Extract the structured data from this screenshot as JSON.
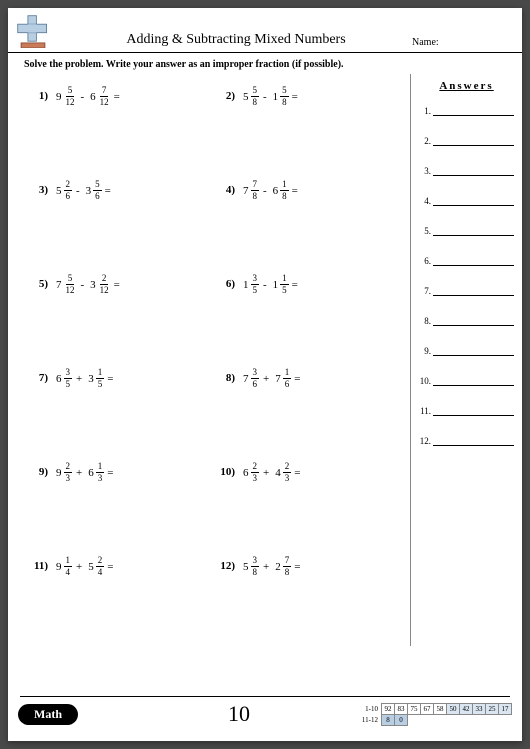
{
  "header": {
    "title": "Adding & Subtracting Mixed Numbers",
    "name_label": "Name:"
  },
  "instruction": "Solve the problem. Write your answer as an improper fraction (if possible).",
  "answers_title": "Answers",
  "page_number": "10",
  "math_label": "Math",
  "problems": [
    {
      "n": "1)",
      "a_w": "9",
      "a_n": "5",
      "a_d": "12",
      "op": "-",
      "b_w": "6",
      "b_n": "7",
      "b_d": "12"
    },
    {
      "n": "2)",
      "a_w": "5",
      "a_n": "5",
      "a_d": "8",
      "op": "-",
      "b_w": "1",
      "b_n": "5",
      "b_d": "8"
    },
    {
      "n": "3)",
      "a_w": "5",
      "a_n": "2",
      "a_d": "6",
      "op": "-",
      "b_w": "3",
      "b_n": "5",
      "b_d": "6"
    },
    {
      "n": "4)",
      "a_w": "7",
      "a_n": "7",
      "a_d": "8",
      "op": "-",
      "b_w": "6",
      "b_n": "1",
      "b_d": "8"
    },
    {
      "n": "5)",
      "a_w": "7",
      "a_n": "5",
      "a_d": "12",
      "op": "-",
      "b_w": "3",
      "b_n": "2",
      "b_d": "12"
    },
    {
      "n": "6)",
      "a_w": "1",
      "a_n": "3",
      "a_d": "5",
      "op": "-",
      "b_w": "1",
      "b_n": "1",
      "b_d": "5"
    },
    {
      "n": "7)",
      "a_w": "6",
      "a_n": "3",
      "a_d": "5",
      "op": "+",
      "b_w": "3",
      "b_n": "1",
      "b_d": "5"
    },
    {
      "n": "8)",
      "a_w": "7",
      "a_n": "3",
      "a_d": "6",
      "op": "+",
      "b_w": "7",
      "b_n": "1",
      "b_d": "6"
    },
    {
      "n": "9)",
      "a_w": "9",
      "a_n": "2",
      "a_d": "3",
      "op": "+",
      "b_w": "6",
      "b_n": "1",
      "b_d": "3"
    },
    {
      "n": "10)",
      "a_w": "6",
      "a_n": "2",
      "a_d": "3",
      "op": "+",
      "b_w": "4",
      "b_n": "2",
      "b_d": "3"
    },
    {
      "n": "11)",
      "a_w": "9",
      "a_n": "1",
      "a_d": "4",
      "op": "+",
      "b_w": "5",
      "b_n": "2",
      "b_d": "4"
    },
    {
      "n": "12)",
      "a_w": "5",
      "a_n": "3",
      "a_d": "8",
      "op": "+",
      "b_w": "2",
      "b_n": "7",
      "b_d": "8"
    }
  ],
  "answer_numbers": [
    "1.",
    "2.",
    "3.",
    "4.",
    "5.",
    "6.",
    "7.",
    "8.",
    "9.",
    "10.",
    "11.",
    "12."
  ],
  "score": {
    "row1_label": "1-10",
    "row2_label": "11-12",
    "row1": [
      "92",
      "83",
      "75",
      "67",
      "58",
      "50",
      "42",
      "33",
      "25",
      "17"
    ],
    "row2": [
      "8",
      "0"
    ],
    "row1_shade": [
      "",
      "",
      "",
      "",
      "",
      "a",
      "a",
      "a",
      "a",
      "a"
    ],
    "row2_shade": [
      "b",
      "b"
    ]
  }
}
